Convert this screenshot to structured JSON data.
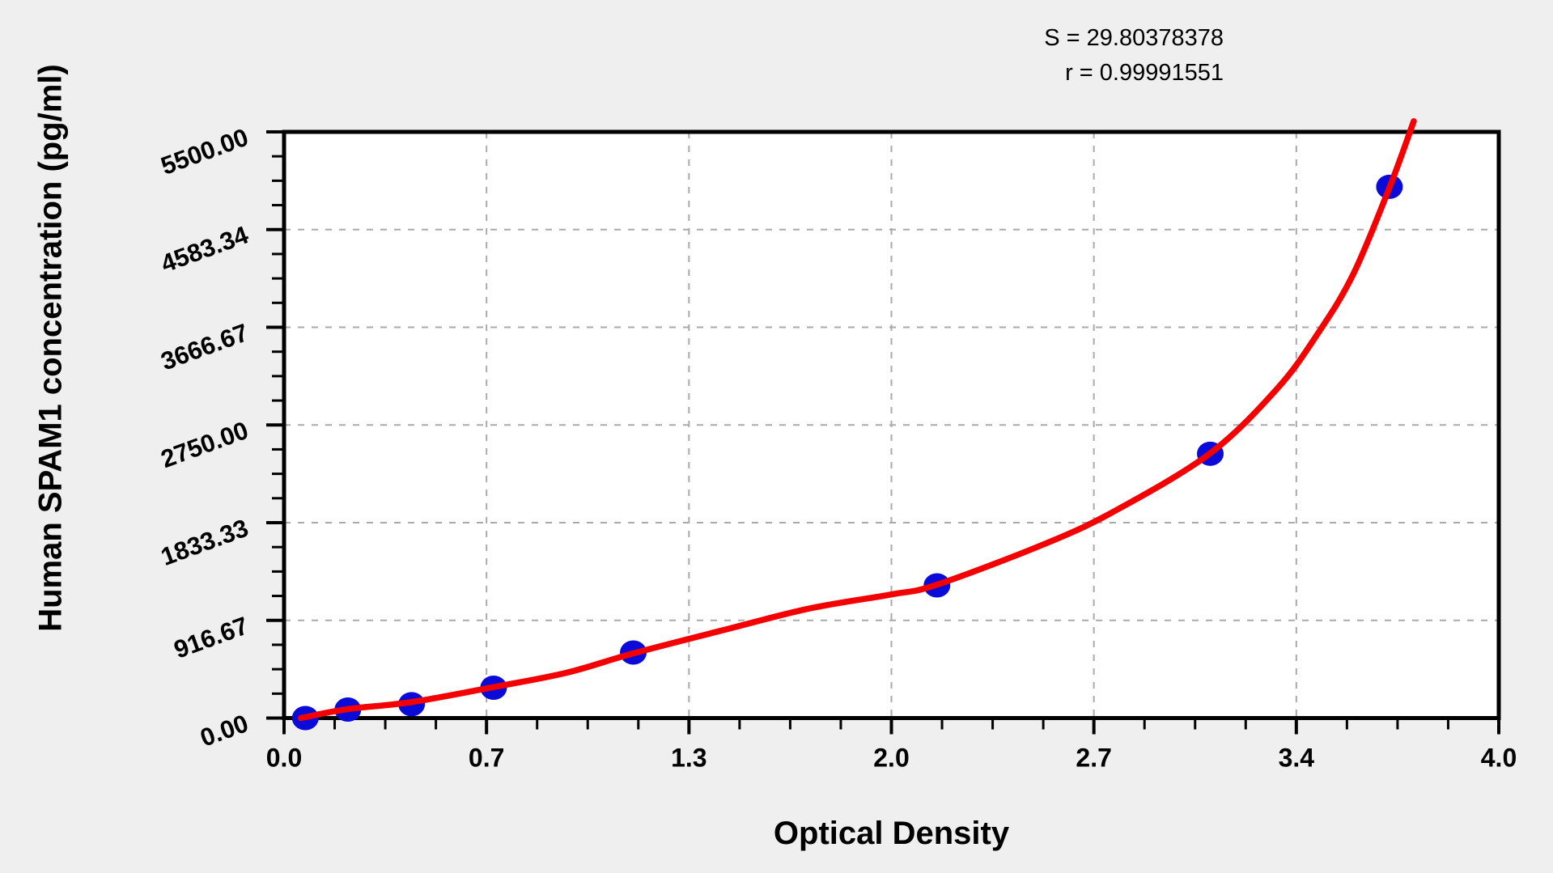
{
  "figure": {
    "background": "#efefef",
    "plot_background": "#ffffff"
  },
  "chart_data": {
    "type": "scatter",
    "title": "",
    "xlabel": "Optical Density",
    "ylabel": "Human SPAM1 concentration (pg/ml)",
    "xlim": [
      0,
      4.0
    ],
    "ylim": [
      0,
      5500
    ],
    "x_tick_labels": [
      "0.0",
      "0.7",
      "1.3",
      "2.0",
      "2.7",
      "3.4",
      "4.0"
    ],
    "y_tick_labels": [
      "0.00",
      "916.67",
      "1833.33",
      "2750.00",
      "3666.67",
      "4583.34",
      "5500.00"
    ],
    "x_minor_divisions": 4,
    "y_minor_divisions": 4,
    "grid": "dashed-major",
    "annotations": [
      "S = 29.80378378",
      "r = 0.99991551"
    ],
    "colors": {
      "points": "#0a0ad9",
      "curve": "#f40000",
      "grid": "#aaaaaa",
      "axis": "#000000"
    },
    "series": [
      {
        "name": "standard-points",
        "type": "scatter",
        "points": [
          {
            "od": 0.07,
            "conc": 0
          },
          {
            "od": 0.21,
            "conc": 80
          },
          {
            "od": 0.42,
            "conc": 130
          },
          {
            "od": 0.69,
            "conc": 285
          },
          {
            "od": 1.15,
            "conc": 615
          },
          {
            "od": 2.15,
            "conc": 1245
          },
          {
            "od": 3.05,
            "conc": 2480
          },
          {
            "od": 3.64,
            "conc": 4985
          }
        ]
      },
      {
        "name": "fitted-curve",
        "type": "line",
        "points": [
          {
            "od": 0.055,
            "conc": 0
          },
          {
            "od": 0.205,
            "conc": 82
          },
          {
            "od": 0.42,
            "conc": 150
          },
          {
            "od": 0.685,
            "conc": 288
          },
          {
            "od": 0.93,
            "conc": 425
          },
          {
            "od": 1.151,
            "conc": 608
          },
          {
            "od": 1.46,
            "conc": 835
          },
          {
            "od": 1.73,
            "conc": 1028
          },
          {
            "od": 2.0,
            "conc": 1160
          },
          {
            "od": 2.148,
            "conc": 1250
          },
          {
            "od": 2.51,
            "conc": 1640
          },
          {
            "od": 2.74,
            "conc": 1950
          },
          {
            "od": 3.05,
            "conc": 2485
          },
          {
            "od": 3.27,
            "conc": 3090
          },
          {
            "od": 3.4,
            "conc": 3590
          },
          {
            "od": 3.52,
            "conc": 4160
          },
          {
            "od": 3.641,
            "conc": 4985
          },
          {
            "od": 3.72,
            "conc": 5600
          }
        ]
      }
    ]
  }
}
